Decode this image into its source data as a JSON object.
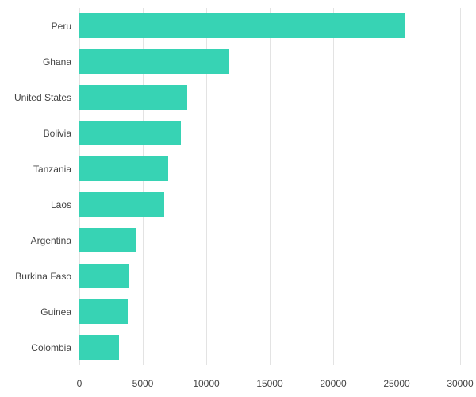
{
  "chart": {
    "type": "bar-horizontal",
    "categories": [
      "Peru",
      "Ghana",
      "United States",
      "Bolivia",
      "Tanzania",
      "Laos",
      "Argentina",
      "Burkina Faso",
      "Guinea",
      "Colombia"
    ],
    "values": [
      25700,
      11800,
      8500,
      8000,
      7000,
      6700,
      4500,
      3900,
      3800,
      3100
    ],
    "bar_color": "#37d3b4",
    "background_color": "#ffffff",
    "xlim": [
      0,
      30000
    ],
    "xtick_step": 5000,
    "xtick_labels": [
      "0",
      "5000",
      "10000",
      "15000",
      "20000",
      "25000",
      "30000"
    ],
    "grid_color": "#e3e3e3",
    "axis_label_color": "#444444",
    "axis_label_fontsize": 12,
    "bar_gap_ratio": 0.3
  }
}
